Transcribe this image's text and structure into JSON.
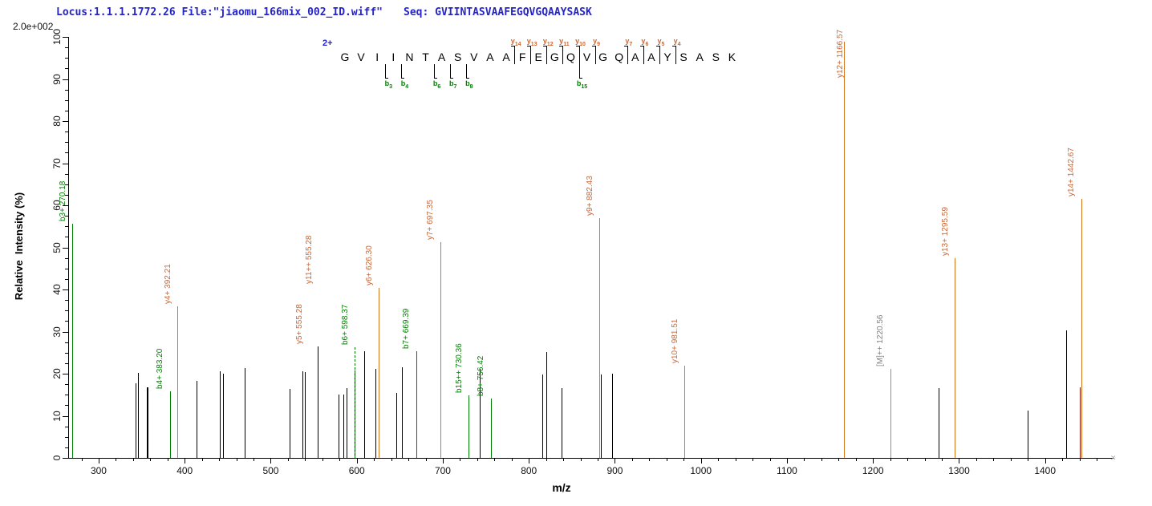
{
  "header": {
    "locus": "Locus:1.1.1.1772.26",
    "file": "File:\"jiaomu_166mix_002_ID.wiff\"",
    "seq_label": "Seq:",
    "sequence": "GVIINTASVAAFEGQVGQAAYSASK"
  },
  "max_intensity_label": "2.0e+002",
  "precursor_charge": "2+",
  "axes": {
    "x_title": "m/z",
    "y_title": "Relative  Intensity (%)",
    "end_marker": "✕"
  },
  "colors": {
    "y_line": "#d2771e",
    "y_label": "#cc6633",
    "b_line": "#008000",
    "b_label": "#008000",
    "unassigned": "#000000",
    "M_line": "#909090",
    "M_label": "#808080",
    "precursor_line": "#8b1a1a",
    "header_blue": "#2424c8"
  },
  "ladder": {
    "residues": [
      "G",
      "V",
      "I",
      "I",
      "N",
      "T",
      "A",
      "S",
      "V",
      "A",
      "A",
      "F",
      "E",
      "G",
      "Q",
      "V",
      "G",
      "Q",
      "A",
      "A",
      "Y",
      "S",
      "A",
      "S",
      "K"
    ],
    "b_marks": [
      {
        "letter": "b",
        "n": "3",
        "index": 3
      },
      {
        "letter": "b",
        "n": "4",
        "index": 4
      },
      {
        "letter": "b",
        "n": "6",
        "index": 6
      },
      {
        "letter": "b",
        "n": "7",
        "index": 7
      },
      {
        "letter": "b",
        "n": "8",
        "index": 8
      },
      {
        "letter": "b",
        "n": "15",
        "index": 15
      }
    ],
    "y_marks": [
      {
        "letter": "y",
        "n": "14",
        "index": 11
      },
      {
        "letter": "y",
        "n": "13",
        "index": 12
      },
      {
        "letter": "y",
        "n": "12",
        "index": 13
      },
      {
        "letter": "y",
        "n": "11",
        "index": 14
      },
      {
        "letter": "y",
        "n": "10",
        "index": 15
      },
      {
        "letter": "y",
        "n": "9",
        "index": 16
      },
      {
        "letter": "y",
        "n": "7",
        "index": 18
      },
      {
        "letter": "y",
        "n": "6",
        "index": 19
      },
      {
        "letter": "y",
        "n": "5",
        "index": 20
      },
      {
        "letter": "y",
        "n": "4",
        "index": 21
      }
    ]
  },
  "chart_data": {
    "type": "ms2_peptide_spectrum",
    "xlabel": "m/z",
    "ylabel": "Relative  Intensity (%)",
    "x_range": [
      264.6,
      1480
    ],
    "y_range": [
      0,
      100
    ],
    "x_major_ticks": [
      300,
      400,
      500,
      600,
      700,
      800,
      900,
      1000,
      1100,
      1200,
      1300,
      1400
    ],
    "x_minor_step": 20,
    "y_major_ticks": [
      0,
      10,
      20,
      30,
      40,
      50,
      60,
      70,
      80,
      90,
      100
    ],
    "y_minor_step": 2.5,
    "grid": false,
    "absolute_max_intensity": "2.0e+002",
    "precursor_charge": "2+",
    "peptide": "GVIINTASVAAFEGQVGQAAYSASK",
    "b_ions_observed": [
      "b3",
      "b4",
      "b6",
      "b7",
      "b8",
      "b15"
    ],
    "y_ions_observed": [
      "y4",
      "y5",
      "y6",
      "y7",
      "y9",
      "y10",
      "y11",
      "y12",
      "y13",
      "y14"
    ],
    "peaks": [
      {
        "mz": 270.18,
        "intensity": 55.6,
        "kind": "b",
        "labels": [
          {
            "text": "b3+ 270.18",
            "kind": "b"
          }
        ]
      },
      {
        "mz": 343.0,
        "intensity": 17.7,
        "kind": "none"
      },
      {
        "mz": 346.5,
        "intensity": 20.2,
        "kind": "none"
      },
      {
        "mz": 356.5,
        "intensity": 16.8,
        "kind": "none",
        "w": 2
      },
      {
        "mz": 383.2,
        "intensity": 15.8,
        "kind": "b",
        "labels": [
          {
            "text": "b4+ 383.20",
            "kind": "b"
          }
        ]
      },
      {
        "mz": 392.21,
        "intensity": 36.0,
        "kind": "y",
        "labels": [
          {
            "text": "y4+ 392.21",
            "kind": "y"
          }
        ]
      },
      {
        "mz": 414.0,
        "intensity": 18.3,
        "kind": "none"
      },
      {
        "mz": 441.0,
        "intensity": 20.6,
        "kind": "none"
      },
      {
        "mz": 445.0,
        "intensity": 20.0,
        "kind": "none"
      },
      {
        "mz": 470.0,
        "intensity": 21.3,
        "kind": "none"
      },
      {
        "mz": 522.0,
        "intensity": 16.4,
        "kind": "none"
      },
      {
        "mz": 537.0,
        "intensity": 20.6,
        "kind": "none"
      },
      {
        "mz": 540.5,
        "intensity": 20.3,
        "kind": "none"
      },
      {
        "mz": 555.28,
        "intensity": 26.5,
        "kind": "none",
        "labels": [
          {
            "text": "y5+ 555.28",
            "kind": "y",
            "dx": -11,
            "dy": 0
          },
          {
            "text": "y11++ 555.28",
            "kind": "y",
            "dx": 1,
            "dy": -75
          }
        ]
      },
      {
        "mz": 579.5,
        "intensity": 15.1,
        "kind": "none"
      },
      {
        "mz": 585.0,
        "intensity": 15.1,
        "kind": "none"
      },
      {
        "mz": 589.0,
        "intensity": 16.5,
        "kind": "none"
      },
      {
        "mz": 597.5,
        "intensity": 20.8,
        "kind": "none"
      },
      {
        "mz": 598.37,
        "intensity": 26.3,
        "kind": "b",
        "dashed": true,
        "labels": [
          {
            "text": "b6+ 598.37",
            "kind": "b"
          }
        ]
      },
      {
        "mz": 609.5,
        "intensity": 25.3,
        "kind": "none"
      },
      {
        "mz": 622.5,
        "intensity": 21.1,
        "kind": "none"
      },
      {
        "mz": 626.3,
        "intensity": 40.3,
        "kind": "y",
        "labels": [
          {
            "text": "y6+ 626.30",
            "kind": "y"
          }
        ]
      },
      {
        "mz": 646.0,
        "intensity": 15.4,
        "kind": "none"
      },
      {
        "mz": 652.5,
        "intensity": 21.5,
        "kind": "none"
      },
      {
        "mz": 669.39,
        "intensity": 25.3,
        "kind": "b",
        "labels": [
          {
            "text": "b7+ 669.39",
            "kind": "b"
          }
        ]
      },
      {
        "mz": 697.35,
        "intensity": 51.3,
        "kind": "y",
        "labels": [
          {
            "text": "y7+ 697.35",
            "kind": "y"
          }
        ]
      },
      {
        "mz": 730.36,
        "intensity": 14.9,
        "kind": "b",
        "labels": [
          {
            "text": "b15++ 730.36",
            "kind": "b"
          }
        ]
      },
      {
        "mz": 743.7,
        "intensity": 21.1,
        "kind": "none"
      },
      {
        "mz": 756.42,
        "intensity": 14.1,
        "kind": "b",
        "labels": [
          {
            "text": "b8+ 756.42",
            "kind": "b"
          }
        ]
      },
      {
        "mz": 816.5,
        "intensity": 19.8,
        "kind": "none"
      },
      {
        "mz": 820.5,
        "intensity": 25.1,
        "kind": "none"
      },
      {
        "mz": 838.5,
        "intensity": 16.5,
        "kind": "none"
      },
      {
        "mz": 882.43,
        "intensity": 57.0,
        "kind": "y",
        "labels": [
          {
            "text": "y9+ 882.43",
            "kind": "y"
          }
        ]
      },
      {
        "mz": 884.6,
        "intensity": 19.8,
        "kind": "none"
      },
      {
        "mz": 897.4,
        "intensity": 20.0,
        "kind": "none"
      },
      {
        "mz": 981.51,
        "intensity": 22.0,
        "kind": "y",
        "labels": [
          {
            "text": "y10+ 981.51",
            "kind": "y"
          }
        ]
      },
      {
        "mz": 1166.57,
        "intensity": 98.9,
        "kind": "y",
        "labels": [
          {
            "text": "y12+ 1166.57",
            "kind": "y",
            "dx": 8,
            "dy": 48
          }
        ]
      },
      {
        "mz": 1220.56,
        "intensity": 21.1,
        "kind": "M",
        "labels": [
          {
            "text": "[M]++ 1220.56",
            "kind": "M"
          }
        ]
      },
      {
        "mz": 1277.0,
        "intensity": 16.5,
        "kind": "none"
      },
      {
        "mz": 1295.59,
        "intensity": 47.4,
        "kind": "y",
        "labels": [
          {
            "text": "y13+ 1295.59",
            "kind": "y"
          }
        ]
      },
      {
        "mz": 1380.0,
        "intensity": 11.2,
        "kind": "none"
      },
      {
        "mz": 1424.8,
        "intensity": 30.3,
        "kind": "none"
      },
      {
        "mz": 1440.5,
        "intensity": 16.8,
        "kind": "prec"
      },
      {
        "mz": 1442.67,
        "intensity": 61.5,
        "kind": "y",
        "labels": [
          {
            "text": "y14+ 1442.67",
            "kind": "y"
          }
        ]
      }
    ]
  }
}
